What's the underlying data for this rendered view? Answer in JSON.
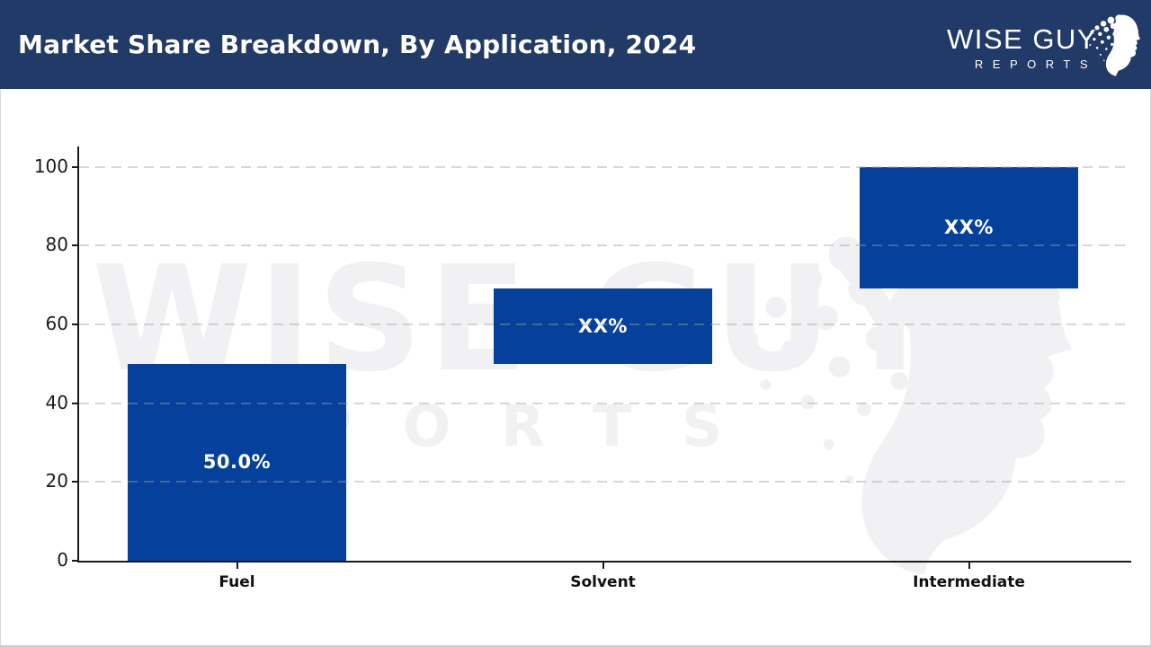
{
  "header": {
    "title": "Market Share Breakdown, By Application, 2024",
    "bg_color": "#213a68",
    "logo": {
      "line1": "WISE GUY",
      "line2": "REPORTS"
    }
  },
  "watermark": {
    "line1": "WISE GUY",
    "line2": "REPORTS"
  },
  "chart_data": {
    "type": "bar",
    "variant": "stacked-range-waterfall",
    "title": "Market Share Breakdown, By Application, 2024",
    "categories": [
      "Fuel",
      "Solvent",
      "Intermediate"
    ],
    "segments": [
      {
        "category": "Fuel",
        "start": 0,
        "end": 50,
        "label": "50.0%"
      },
      {
        "category": "Solvent",
        "start": 50,
        "end": 69,
        "label": "XX%"
      },
      {
        "category": "Intermediate",
        "start": 69,
        "end": 100,
        "label": "XX%"
      }
    ],
    "yticks": [
      0,
      20,
      40,
      60,
      80,
      100
    ],
    "ylim": [
      0,
      105
    ],
    "xlabel": "",
    "ylabel": "",
    "grid": "horizontal-dashed",
    "legend": "none",
    "bar_color": "#05419b",
    "bar_label_color": "#ffffff",
    "axis_color": "#1a1a1a"
  }
}
